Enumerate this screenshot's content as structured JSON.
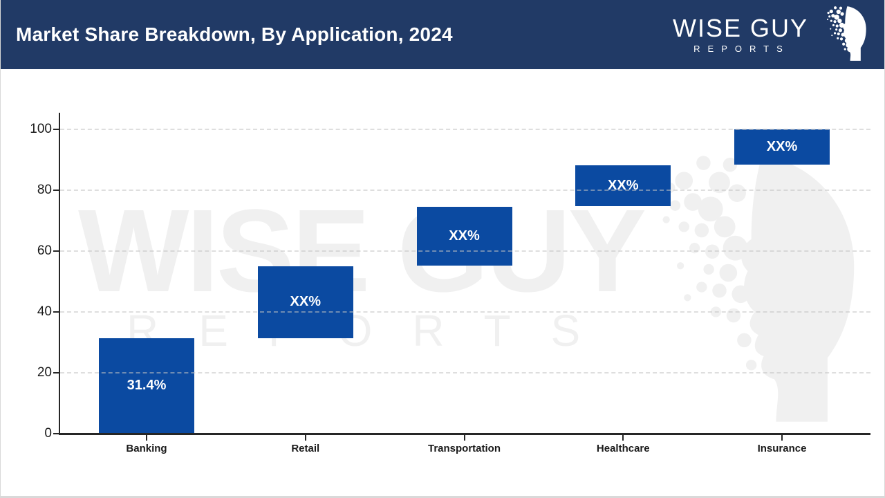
{
  "header": {
    "title": "Market Share Breakdown, By Application, 2024",
    "logo": {
      "wordmark": "WISE GUY",
      "subtext": "REPORTS"
    }
  },
  "watermark": {
    "line1": "WISE GUY",
    "line2": "REPORTS"
  },
  "colors": {
    "header_bg": "#213a66",
    "bar": "#0b4aa1",
    "axis": "#262626",
    "gridline": "#dcdcdc",
    "bar_label_text": "#ffffff",
    "watermark": "#f0f0f0",
    "title_text": "#ffffff"
  },
  "chart_data": {
    "type": "bar",
    "subtype": "waterfall-floating-bars",
    "title": "Market Share Breakdown, By Application, 2024",
    "xlabel": "",
    "ylabel": "",
    "ylim": [
      0,
      100
    ],
    "yticks": [
      0,
      20,
      40,
      60,
      80,
      100
    ],
    "grid": "horizontal-dashed",
    "legend": "none",
    "categories": [
      "Banking",
      "Retail",
      "Transportation",
      "Healthcare",
      "Insurance"
    ],
    "segments": [
      {
        "category": "Banking",
        "start": 0,
        "end": 31.4,
        "value": 31.4,
        "label": "31.4%"
      },
      {
        "category": "Retail",
        "start": 31.4,
        "end": 55.0,
        "value": 23.6,
        "label": "XX%"
      },
      {
        "category": "Transportation",
        "start": 55.2,
        "end": 74.5,
        "value": 19.3,
        "label": "XX%"
      },
      {
        "category": "Healthcare",
        "start": 74.8,
        "end": 88.2,
        "value": 13.4,
        "label": "XX%"
      },
      {
        "category": "Insurance",
        "start": 88.4,
        "end": 100.0,
        "value": 11.6,
        "label": "XX%"
      }
    ]
  }
}
